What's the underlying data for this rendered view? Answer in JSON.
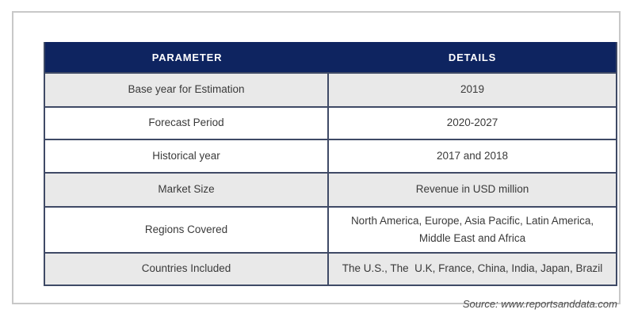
{
  "table": {
    "headers": {
      "parameter": "PARAMETER",
      "details": "DETAILS"
    },
    "rows": [
      {
        "parameter": "Base year for Estimation",
        "details": "2019"
      },
      {
        "parameter": "Forecast Period",
        "details": "2020-2027"
      },
      {
        "parameter": "Historical year",
        "details": "2017 and 2018"
      },
      {
        "parameter": "Market Size",
        "details": "Revenue in USD million"
      },
      {
        "parameter": "Regions Covered",
        "details": "North America, Europe, Asia Pacific, Latin America, Middle East and Africa"
      },
      {
        "parameter": "Countries Included",
        "details": "The U.S., The  U.K, France, China, India, Japan, Brazil"
      }
    ]
  },
  "source": {
    "label": "Source: www.reportsanddata.com"
  },
  "colors": {
    "header_bg": "#0e2460",
    "header_text": "#ffffff",
    "row_shaded_bg": "#e9e9e9",
    "row_plain_bg": "#ffffff",
    "row_border": "#3f4a66",
    "frame_border": "#c8c8c8",
    "cell_text": "#3a3a3a",
    "source_text": "#4a4a4a"
  }
}
